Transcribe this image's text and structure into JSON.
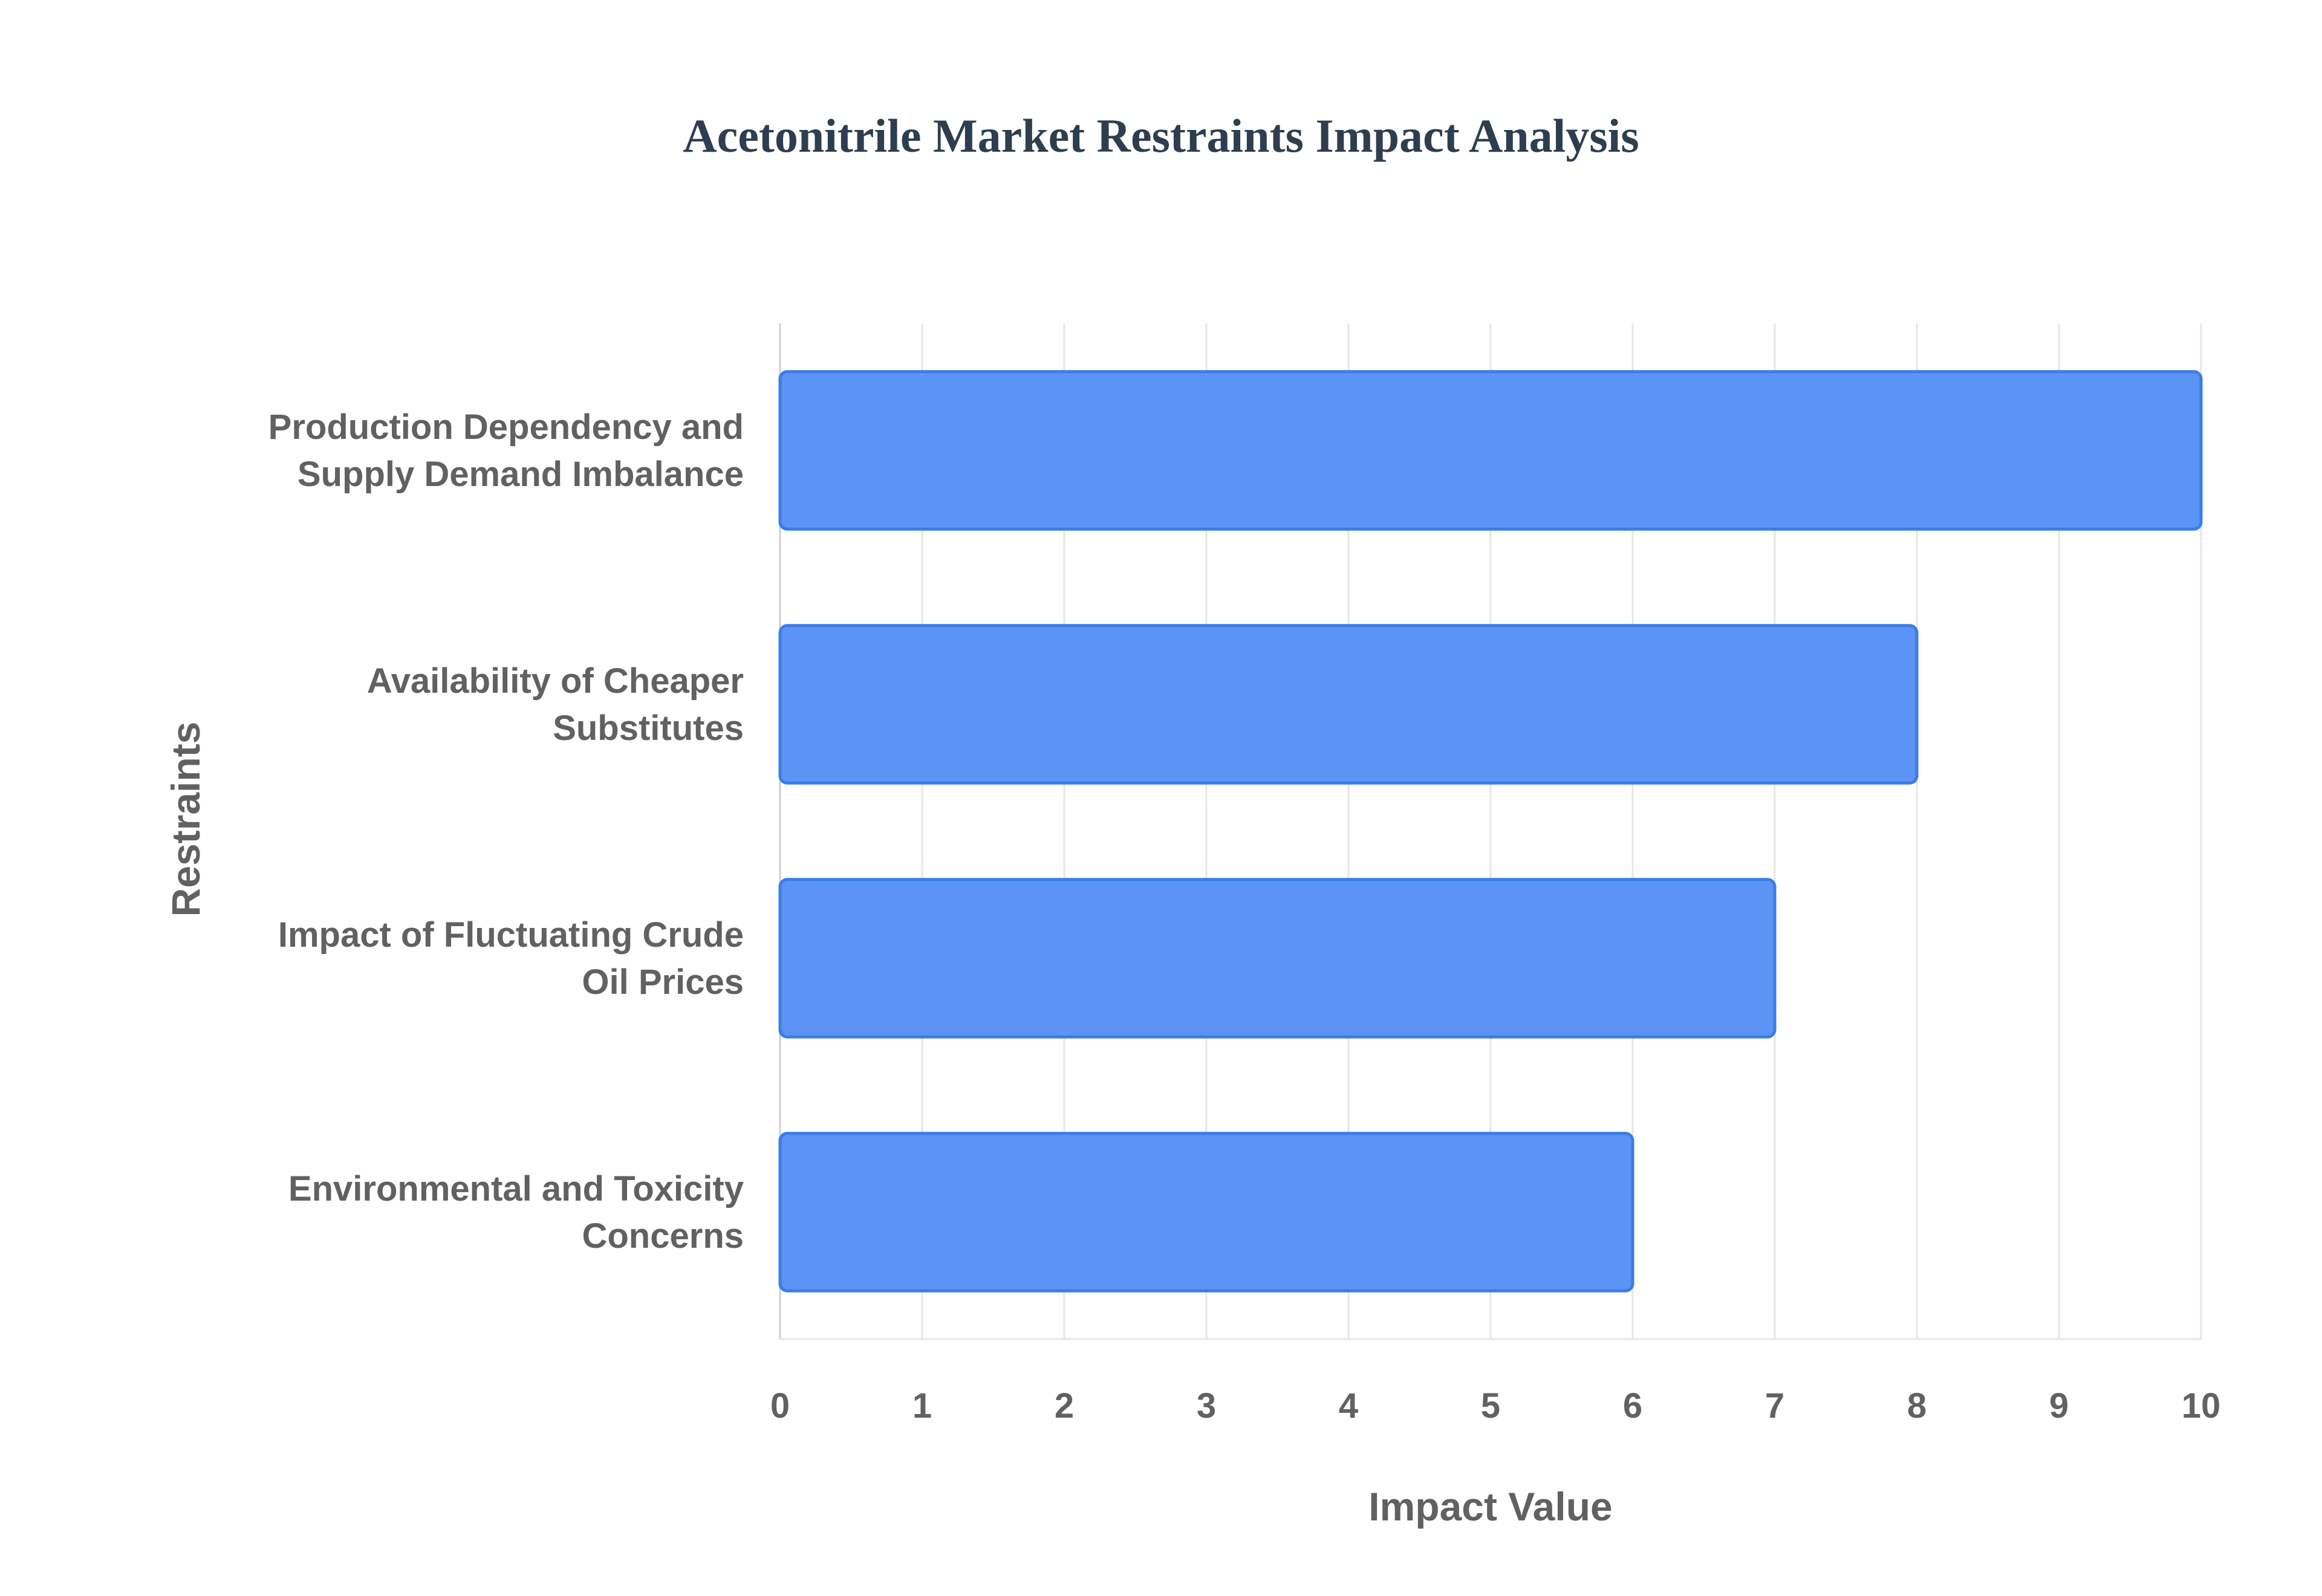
{
  "chart_data": {
    "type": "bar",
    "orientation": "horizontal",
    "title": "Acetonitrile Market Restraints Impact Analysis",
    "xlabel": "Impact Value",
    "ylabel": "Restraints",
    "categories": [
      "Production Dependency and Supply Demand Imbalance",
      "Availability of Cheaper Substitutes",
      "Impact of Fluctuating Crude Oil Prices",
      "Environmental and Toxicity Concerns"
    ],
    "category_lines": [
      [
        "Production Dependency and",
        "Supply Demand Imbalance"
      ],
      [
        "Availability of Cheaper",
        "Substitutes"
      ],
      [
        "Impact of Fluctuating Crude",
        "Oil Prices"
      ],
      [
        "Environmental and Toxicity",
        "Concerns"
      ]
    ],
    "values": [
      10,
      8,
      7,
      6
    ],
    "xlim": [
      0,
      10
    ],
    "xticks": [
      "0",
      "1",
      "2",
      "3",
      "4",
      "5",
      "6",
      "7",
      "8",
      "9",
      "10"
    ],
    "grid": true,
    "legend": "none",
    "colors": {
      "bar_fill": "#5b94f5",
      "bar_stroke": "#3b7ce8",
      "grid": "#e6e6e6",
      "text": "#616161",
      "title": "#2d3e50"
    }
  }
}
